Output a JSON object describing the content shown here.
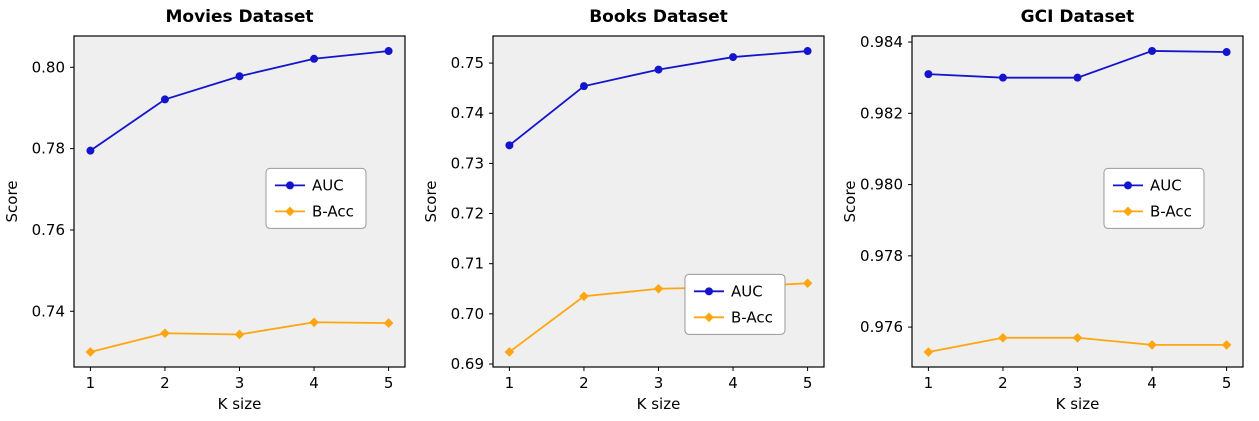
{
  "figure": {
    "background": "#ffffff",
    "plot_background": "#efefef",
    "spine_color": "#000000",
    "legend_border": "#999999",
    "legend_fill": "#ffffff"
  },
  "chart_data": [
    {
      "type": "line",
      "title": "Movies Dataset",
      "xlabel": "K size",
      "ylabel": "Score",
      "x": [
        1,
        2,
        3,
        4,
        5
      ],
      "xlim": [
        0.78,
        5.22
      ],
      "ylim": [
        0.7263,
        0.8077
      ],
      "xticks": [
        1,
        2,
        3,
        4,
        5
      ],
      "yticks": [
        0.74,
        0.76,
        0.78,
        0.8
      ],
      "ytick_decimals": 2,
      "grid": false,
      "legend_position": "center right",
      "legend_frac": {
        "x": 0.58,
        "y": 0.4
      },
      "series": [
        {
          "name": "AUC",
          "color": "#1414cc",
          "marker": "circle",
          "values": [
            0.7795,
            0.7921,
            0.7978,
            0.8021,
            0.804
          ]
        },
        {
          "name": "B-Acc",
          "color": "#ffa510",
          "marker": "diamond",
          "values": [
            0.73,
            0.7346,
            0.7343,
            0.7373,
            0.7371
          ]
        }
      ]
    },
    {
      "type": "line",
      "title": "Books Dataset",
      "xlabel": "K size",
      "ylabel": "Score",
      "x": [
        1,
        2,
        3,
        4,
        5
      ],
      "xlim": [
        0.78,
        5.22
      ],
      "ylim": [
        0.6894,
        0.7554
      ],
      "xticks": [
        1,
        2,
        3,
        4,
        5
      ],
      "yticks": [
        0.69,
        0.7,
        0.71,
        0.72,
        0.73,
        0.74,
        0.75
      ],
      "ytick_decimals": 2,
      "grid": false,
      "legend_position": "lower center right",
      "legend_frac": {
        "x": 0.58,
        "y": 0.72
      },
      "series": [
        {
          "name": "AUC",
          "color": "#1414cc",
          "marker": "circle",
          "values": [
            0.7336,
            0.7454,
            0.7487,
            0.7512,
            0.7524
          ]
        },
        {
          "name": "B-Acc",
          "color": "#ffa510",
          "marker": "diamond",
          "values": [
            0.6924,
            0.7035,
            0.705,
            0.7053,
            0.7061
          ]
        }
      ]
    },
    {
      "type": "line",
      "title": "GCI Dataset",
      "xlabel": "K size",
      "ylabel": "Score",
      "x": [
        1,
        2,
        3,
        4,
        5
      ],
      "xlim": [
        0.78,
        5.22
      ],
      "ylim": [
        0.97488,
        0.98417
      ],
      "xticks": [
        1,
        2,
        3,
        4,
        5
      ],
      "yticks": [
        0.976,
        0.978,
        0.98,
        0.982,
        0.984
      ],
      "ytick_decimals": 3,
      "grid": false,
      "legend_position": "center right",
      "legend_frac": {
        "x": 0.58,
        "y": 0.4
      },
      "series": [
        {
          "name": "AUC",
          "color": "#1414cc",
          "marker": "circle",
          "values": [
            0.9831,
            0.983,
            0.983,
            0.98375,
            0.98372
          ]
        },
        {
          "name": "B-Acc",
          "color": "#ffa510",
          "marker": "diamond",
          "values": [
            0.9753,
            0.9757,
            0.9757,
            0.9755,
            0.9755
          ]
        }
      ]
    }
  ]
}
